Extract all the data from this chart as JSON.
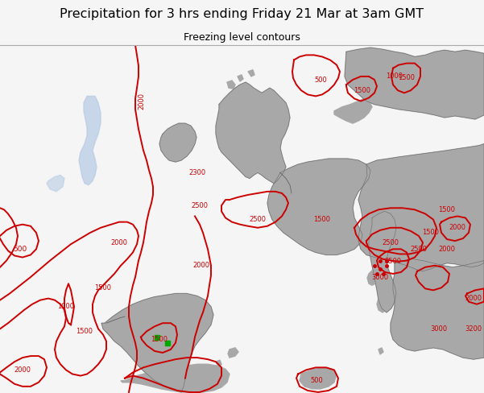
{
  "title": "Precipitation for 3 hrs ending Friday 21 Mar at 3am GMT",
  "subtitle": "Freezing level contours",
  "title_fontsize": 11.5,
  "subtitle_fontsize": 9,
  "ocean_color": "#ccd9ee",
  "land_color": "#a8a8a8",
  "land_border_color": "#666666",
  "header_bg": "#f5f5f5",
  "contour_color": "#cc0000",
  "contour_linewidth": 1.4,
  "fig_width": 6.01,
  "fig_height": 4.88,
  "dpi": 100,
  "precip_color": "#b8cce4",
  "green_marker_color": "#00aa00",
  "red_dot_color": "#cc0000"
}
